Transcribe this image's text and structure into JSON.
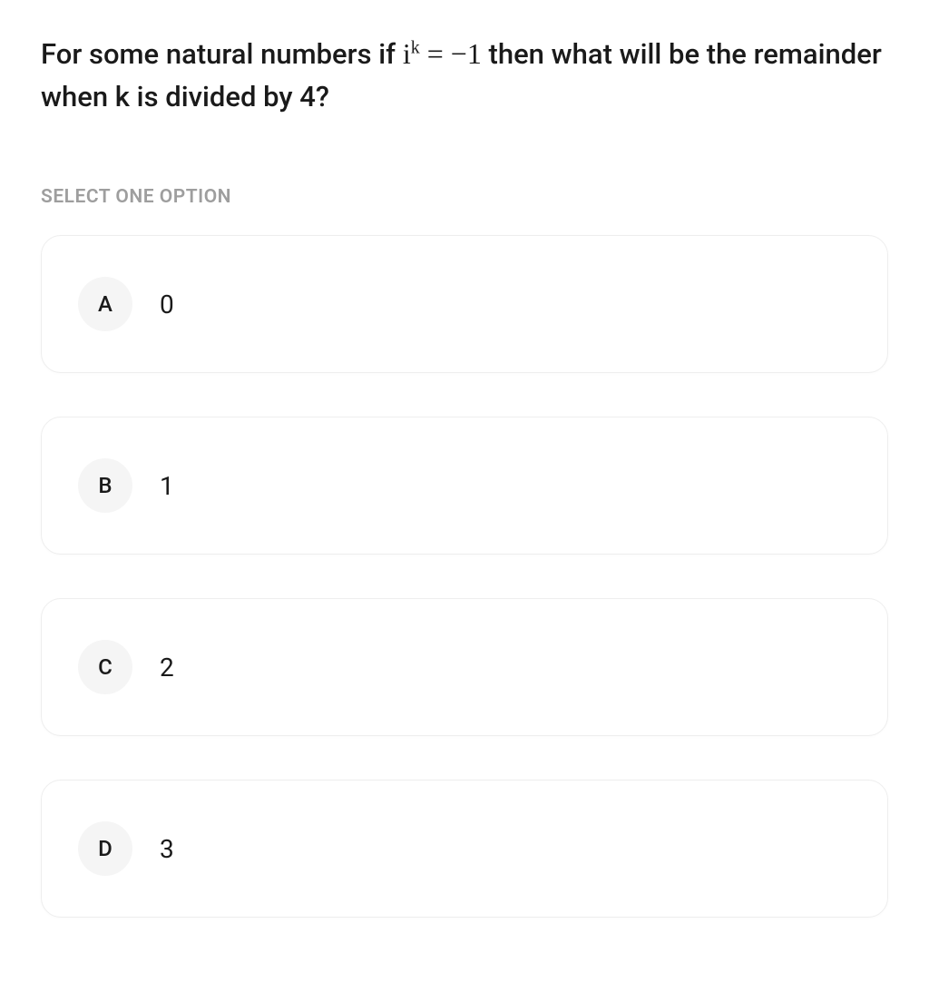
{
  "question": {
    "part1": "For some natural numbers if ",
    "math_base": "i",
    "math_exp": "k",
    "math_eq": " = −1",
    "part2": " then what will be the remainder when k is divided by 4?"
  },
  "instruction": "SELECT ONE OPTION",
  "options": [
    {
      "letter": "A",
      "text": "0"
    },
    {
      "letter": "B",
      "text": "1"
    },
    {
      "letter": "C",
      "text": "2"
    },
    {
      "letter": "D",
      "text": "3"
    }
  ],
  "styles": {
    "background_color": "#ffffff",
    "question_color": "#1a1a1a",
    "question_fontsize": 31,
    "instruction_color": "#9e9e9e",
    "instruction_fontsize": 21,
    "option_border_color": "#eeeeee",
    "option_border_radius": 22,
    "option_letter_bg": "#f5f5f5",
    "option_letter_size": 60,
    "option_text_fontsize": 28,
    "option_gap": 48
  }
}
